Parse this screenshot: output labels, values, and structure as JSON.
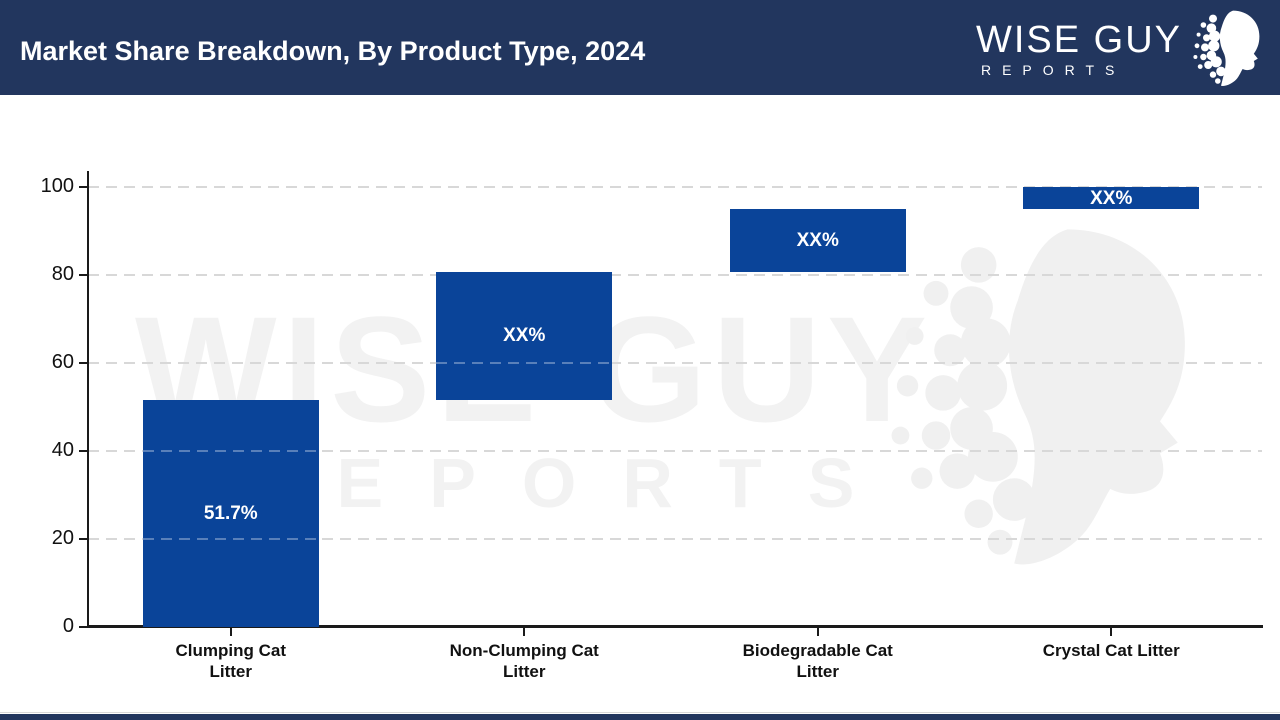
{
  "header": {
    "title": "Market Share Breakdown, By Product Type, 2024",
    "logo_line1": "WISE GUY",
    "logo_line2": "REPORTS"
  },
  "watermark": {
    "line1": "WISE GUY",
    "line2": "REPORTS"
  },
  "colors": {
    "header_bg": "#22365e",
    "bar": "#0a4499",
    "gridline": "#d8d8d8",
    "axis": "#1a1a1a",
    "watermark": "#f2f2f2",
    "value_label": "#ffffff"
  },
  "chart_data": {
    "type": "bar",
    "subtype": "waterfall",
    "title": "Market Share Breakdown, By Product Type, 2024",
    "categories": [
      "Clumping Cat Litter",
      "Non-Clumping Cat Litter",
      "Biodegradable Cat Litter",
      "Crystal Cat Litter"
    ],
    "category_label_lines": [
      [
        "Clumping Cat",
        "Litter"
      ],
      [
        "Non-Clumping Cat",
        "Litter"
      ],
      [
        "Biodegradable Cat",
        "Litter"
      ],
      [
        "Crystal Cat Litter"
      ]
    ],
    "segments": [
      {
        "category": "Clumping Cat Litter",
        "start": 0,
        "end": 51.7,
        "label": "51.7%"
      },
      {
        "category": "Non-Clumping Cat Litter",
        "start": 51.7,
        "end": 80.6,
        "label": "XX%"
      },
      {
        "category": "Biodegradable Cat Litter",
        "start": 80.6,
        "end": 95.0,
        "label": "XX%"
      },
      {
        "category": "Crystal Cat Litter",
        "start": 95.0,
        "end": 100.0,
        "label": "XX%"
      }
    ],
    "yticks": [
      0,
      20,
      40,
      60,
      80,
      100
    ],
    "ylim": [
      0,
      103.5
    ],
    "xlabel": "",
    "ylabel": "",
    "grid": "horizontal-dashed",
    "legend": "none",
    "bar_color": "#0a4499",
    "value_label_color": "#ffffff"
  }
}
